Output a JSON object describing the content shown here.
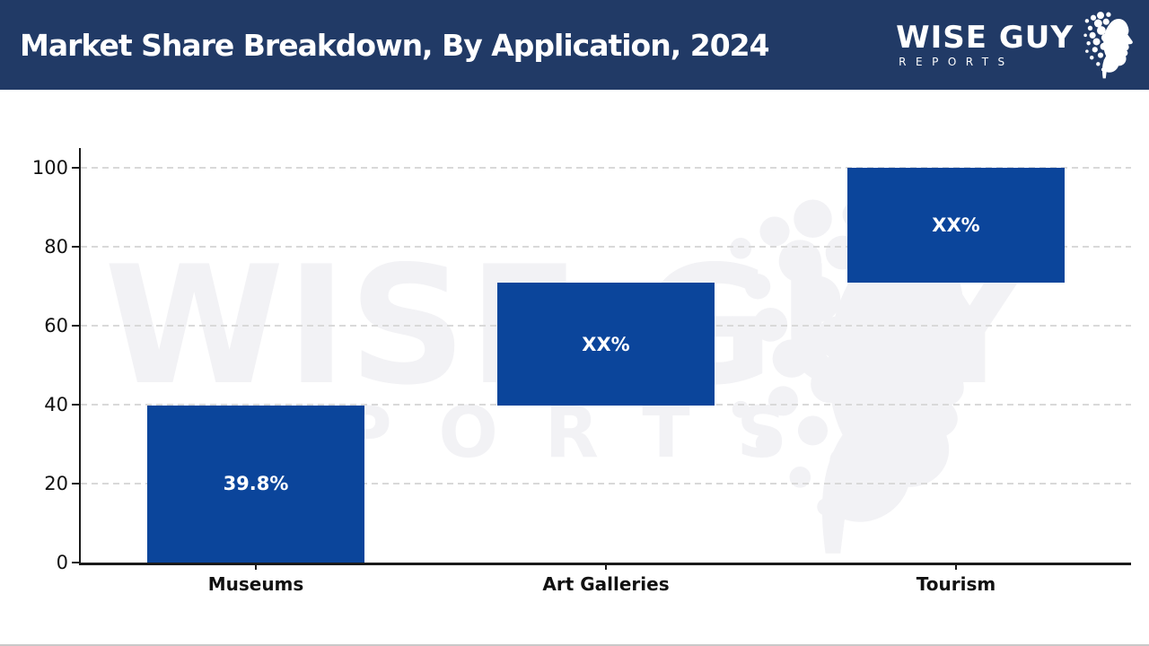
{
  "header": {
    "bg": "#213a66",
    "text_color": "#ffffff",
    "title": "Market Share Breakdown, By Application, 2024",
    "logo": {
      "line1": "WISE GUY",
      "line2": "REPORTS"
    }
  },
  "watermark": {
    "line1": "WISE GUY",
    "line2": "REPORTS"
  },
  "chart_data": {
    "type": "bar",
    "variant": "stacked-waterfall",
    "title": "Market Share Breakdown, By Application, 2024",
    "categories": [
      "Museums",
      "Art Galleries",
      "Tourism"
    ],
    "segments": [
      {
        "category": "Museums",
        "start": 0,
        "end": 39.8,
        "label": "39.8%"
      },
      {
        "category": "Art Galleries",
        "start": 39.8,
        "end": 70.8,
        "label": "XX%"
      },
      {
        "category": "Tourism",
        "start": 70.8,
        "end": 100,
        "label": "XX%"
      }
    ],
    "ylim": [
      0,
      105
    ],
    "yticks": [
      0,
      20,
      40,
      60,
      80,
      100
    ],
    "xlabel": "",
    "ylabel": "",
    "grid": "horizontal-dashed",
    "legend": "none",
    "bar_color": "#0b459b",
    "bar_label_color": "#ffffff",
    "axis_color": "#1a1a1a",
    "gridline_color": "#d9d9d9",
    "tick_label_color": "#111111"
  }
}
